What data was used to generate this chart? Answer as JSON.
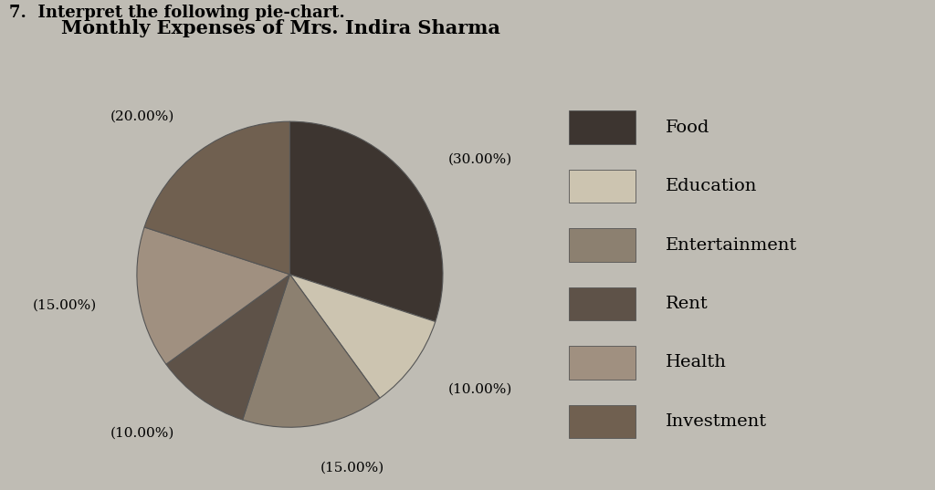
{
  "title": "Monthly Expenses of Mrs. Indira Sharma",
  "question_label": "7.  Interpret the following pie-chart.",
  "categories": [
    "Food",
    "Education",
    "Entertainment",
    "Rent",
    "Health",
    "Investment"
  ],
  "values": [
    30,
    10,
    15,
    10,
    15,
    20
  ],
  "pct_labels": [
    "(30.00%)",
    "(10.00%)",
    "(15.00%)",
    "(10.00%)",
    "(15.00%)",
    "(20.00%)"
  ],
  "colors": [
    "#3d3530",
    "#ccc4b0",
    "#8c8070",
    "#5e5248",
    "#a09080",
    "#706050"
  ],
  "background_color": "#bfbcb4",
  "startangle": 90,
  "title_fontsize": 15,
  "label_fontsize": 11,
  "legend_fontsize": 14,
  "question_fontsize": 13
}
